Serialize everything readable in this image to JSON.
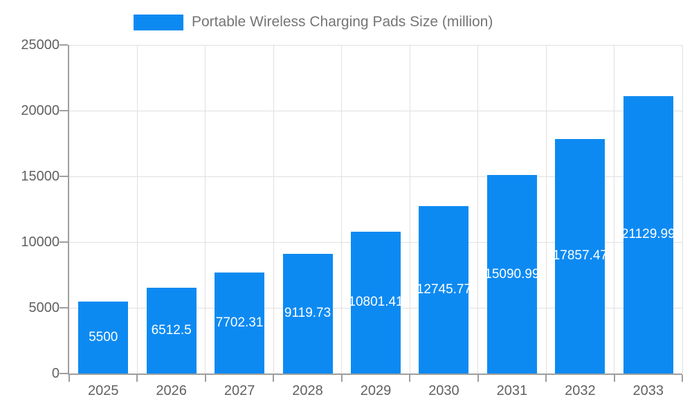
{
  "legend": {
    "label": "Portable Wireless Charging Pads Size (million)"
  },
  "chart_data": {
    "type": "bar",
    "title": "Portable Wireless Charging Pads Size (million)",
    "categories": [
      "2025",
      "2026",
      "2027",
      "2028",
      "2029",
      "2030",
      "2031",
      "2032",
      "2033"
    ],
    "values": [
      5500,
      6512.5,
      7702.31,
      9119.73,
      10801.41,
      12745.77,
      15090.99,
      17857.47,
      21129.99
    ],
    "series_name": "Portable Wireless Charging Pads Size (million)",
    "xlabel": "",
    "ylabel": "",
    "ylim": [
      0,
      25000
    ],
    "yticks": [
      0,
      5000,
      10000,
      15000,
      20000,
      25000
    ],
    "grid": true,
    "legend_position": "top",
    "bar_labels_shown": true,
    "colors": {
      "bar": "#0d8af2",
      "grid": "#e0e0e0",
      "axis": "#9e9e9e",
      "tick_label": "#616161",
      "legend_text": "#757575",
      "bar_label_text": "#ffffff",
      "background": "#ffffff"
    }
  }
}
